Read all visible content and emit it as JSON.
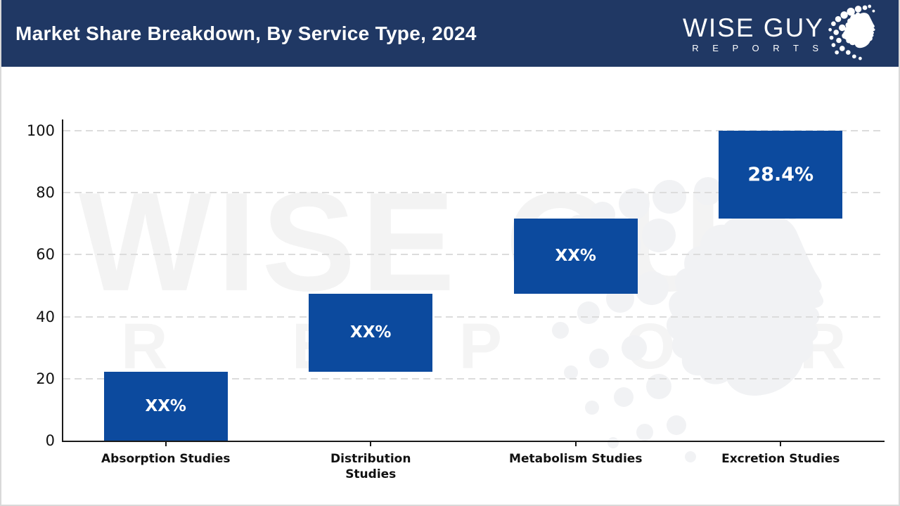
{
  "header": {
    "title": "Market Share Breakdown, By Service Type, 2024",
    "logo": {
      "wordmark": "WISE GUY",
      "subtext": "R E P O R T S"
    }
  },
  "watermark": {
    "line1": "WISE GU",
    "line2": "R E P O R T S"
  },
  "chart_data": {
    "type": "bar",
    "variant": "floating-segment-waterfall",
    "title": "Market Share Breakdown, By Service Type, 2024",
    "categories": [
      "Absorption Studies",
      "Distribution\nStudies",
      "Metabolism Studies",
      "Excretion Studies"
    ],
    "segments": [
      {
        "category": "Absorption Studies",
        "start": 0,
        "end": 22.3,
        "label": "XX%"
      },
      {
        "category": "Distribution Studies",
        "start": 22.3,
        "end": 47.5,
        "label": "XX%"
      },
      {
        "category": "Metabolism Studies",
        "start": 47.5,
        "end": 71.6,
        "label": "XX%"
      },
      {
        "category": "Excretion Studies",
        "start": 71.6,
        "end": 100,
        "label": "28.4%"
      }
    ],
    "values": [
      22.3,
      25.2,
      24.1,
      28.4
    ],
    "yticks": [
      0,
      20,
      40,
      60,
      80,
      100
    ],
    "ylim": [
      0,
      100
    ],
    "xlabel": "",
    "ylabel": "",
    "grid": "dashed-horizontal",
    "legend": false,
    "bar_color": "#0c4a9e",
    "bar_label_color": "#ffffff"
  },
  "colors": {
    "header_bg": "#203864",
    "bar": "#0c4a9e",
    "grid": "#dcdcdc",
    "axis": "#1a1a1a",
    "watermark": "#f3f3f3",
    "frame_border": "#d9d9d9"
  }
}
